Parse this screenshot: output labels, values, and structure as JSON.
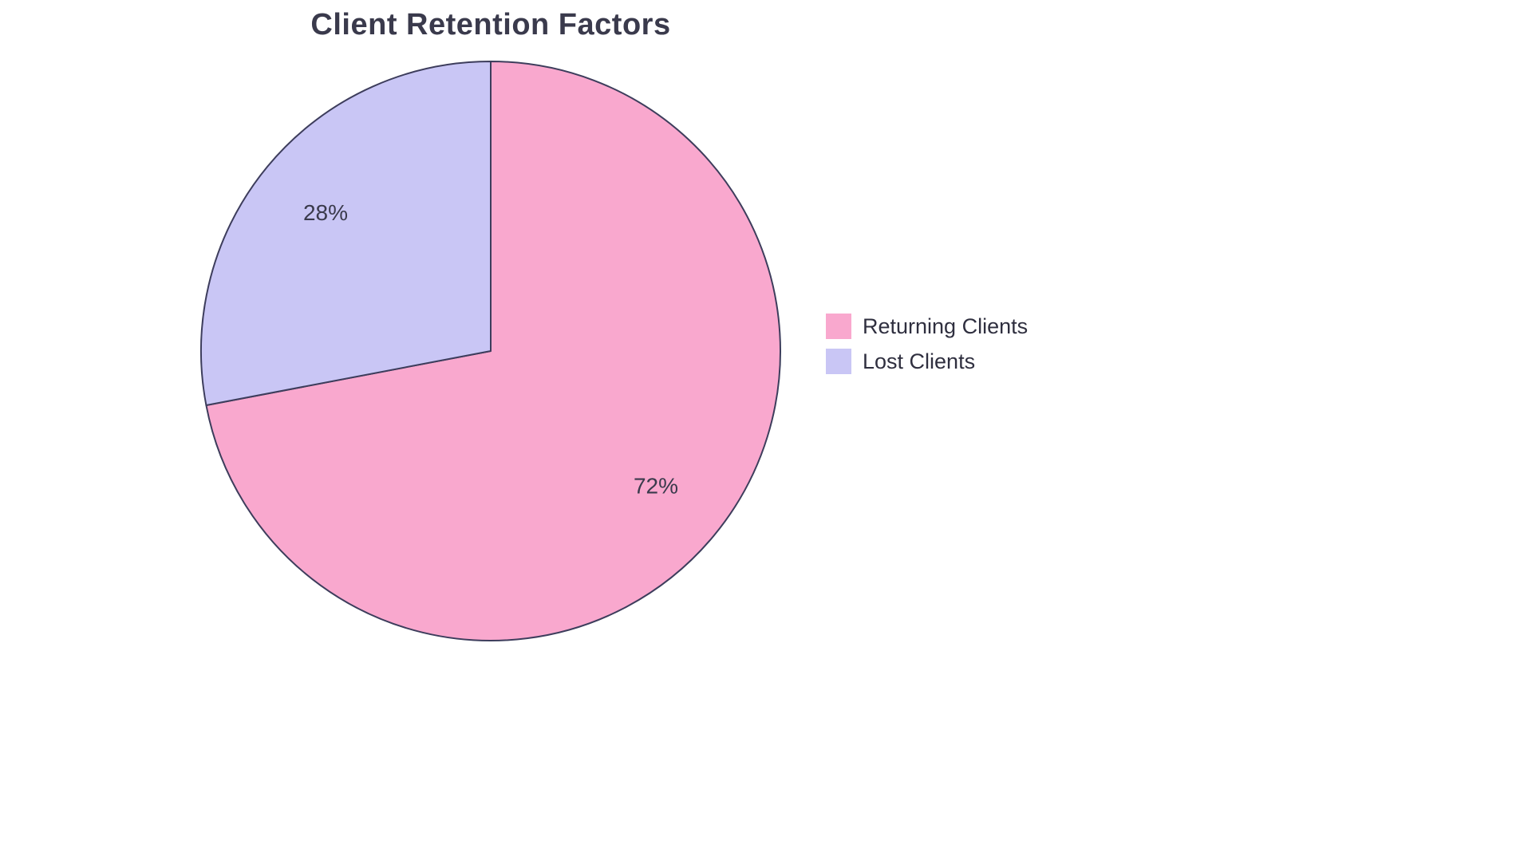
{
  "page": {
    "background_color": "#ffffff"
  },
  "chart_data": {
    "type": "pie",
    "title": "Client Retention Factors",
    "labels": [
      "Returning Clients",
      "Lost Clients"
    ],
    "values": [
      72,
      28
    ],
    "value_labels": [
      "72%",
      "28%"
    ],
    "colors": [
      "#F9A8CE",
      "#C9C6F5"
    ],
    "stroke_color": "#3D3D5C",
    "stroke_width": 2,
    "start_angle": "top",
    "direction": "clockwise",
    "legend_position": "right",
    "label_color": "#3a3a4c"
  }
}
